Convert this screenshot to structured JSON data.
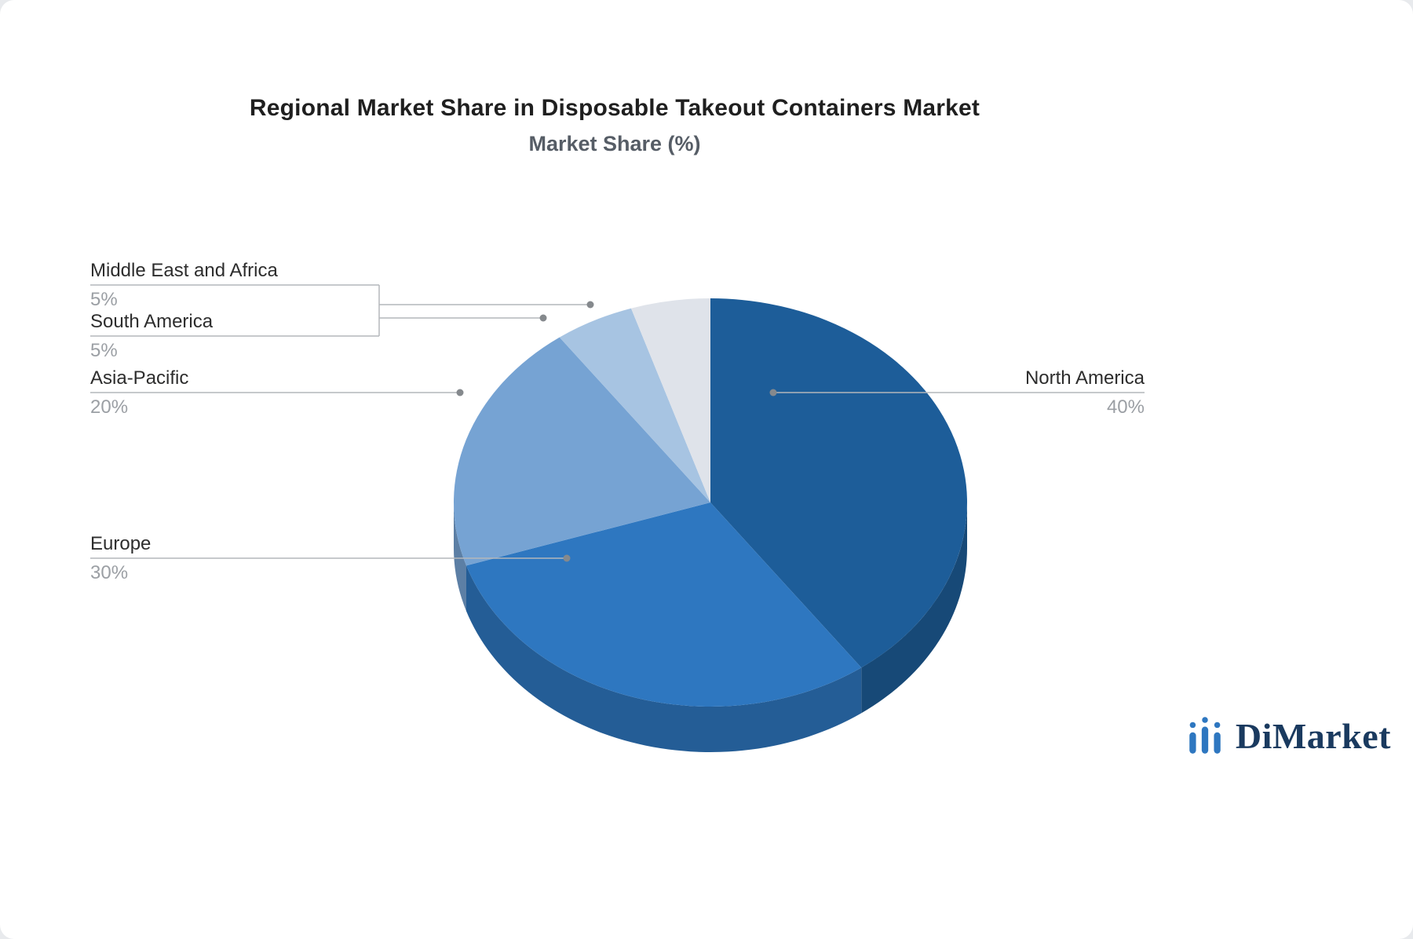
{
  "chart_data": {
    "type": "pie",
    "style": "3d-pie",
    "title": "Regional Market Share in Disposable Takeout Containers Market",
    "subtitle": "Market Share (%)",
    "unit": "percent",
    "labels": [
      "North America",
      "Europe",
      "Asia-Pacific",
      "South America",
      "Middle East and Africa"
    ],
    "values": [
      40,
      30,
      20,
      5,
      5
    ],
    "value_labels": [
      "40%",
      "30%",
      "20%",
      "5%",
      "5%"
    ],
    "colors": [
      "#1d5d99",
      "#2e77c0",
      "#76a3d3",
      "#a7c4e2",
      "#dfe3ea"
    ],
    "legend": "none",
    "label_style": "callout-lines-with-dots",
    "connector_color": "#b4b7bb",
    "dot_color": "#85898d"
  },
  "branding": {
    "logo_text": "DiMarket",
    "logo_icon": "bar-chart-icon",
    "logo_text_color": "#1a3a5f",
    "logo_icon_color": "#2e77c0"
  }
}
